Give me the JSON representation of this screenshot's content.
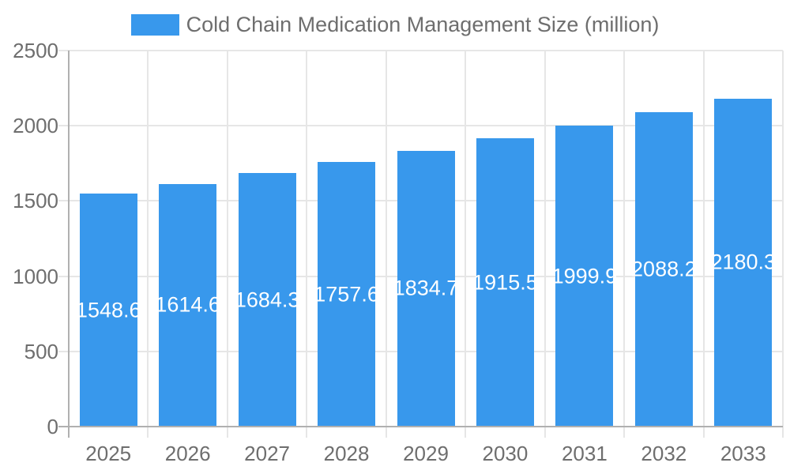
{
  "chart_data": {
    "type": "bar",
    "title": "Cold Chain Medication Management Size (million)",
    "categories": [
      "2025",
      "2026",
      "2027",
      "2028",
      "2029",
      "2030",
      "2031",
      "2032",
      "2033"
    ],
    "series": [
      {
        "name": "Cold Chain Medication Management Size (million)",
        "values": [
          1548.6,
          1614.6,
          1684.3,
          1757.6,
          1834.7,
          1915.5,
          1999.9,
          2088.2,
          2180.3
        ]
      }
    ],
    "value_labels": [
      "1548.6",
      "1614.6",
      "1684.3",
      "1757.6",
      "1834.7",
      "1915.5",
      "1999.9",
      "2088.2",
      "2180.3"
    ],
    "xlabel": "",
    "ylabel": "",
    "ylim": [
      0,
      2500
    ],
    "yticks": [
      "0",
      "500",
      "1000",
      "1500",
      "2000",
      "2500"
    ],
    "grid": "on",
    "legend_position": "top",
    "value_label_position": "inside-center"
  },
  "colors": {
    "bar": "#3898EC",
    "axis_text": "#6e6e6e",
    "grid_line": "#e6e6e6",
    "axis_line": "#b0b0b0",
    "value_label_text": "#ffffff",
    "background": "#ffffff"
  }
}
